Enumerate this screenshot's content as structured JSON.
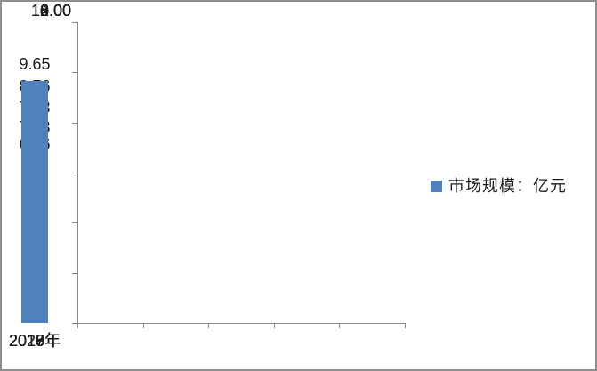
{
  "chart_data": {
    "type": "bar",
    "categories": [
      "2016年",
      "2017年",
      "2018年",
      "2019年",
      "2020年"
    ],
    "values": [
      6.46,
      7.13,
      7.93,
      8.76,
      9.65
    ],
    "data_labels": [
      "6.46",
      "7.13",
      "7.93",
      "8.76",
      "9.65"
    ],
    "y_ticks": [
      "0.00",
      "2.00",
      "4.00",
      "6.00",
      "8.00",
      "10.00",
      "12.00"
    ],
    "ylim": [
      0,
      12
    ],
    "title": "",
    "xlabel": "",
    "ylabel": "",
    "grid": false,
    "legend_position": "right",
    "legend": [
      {
        "label": "市场规模：亿元",
        "color": "#4f81bd"
      }
    ],
    "bar_color": "#4f81bd",
    "axis_color": "#898989",
    "text_color": "#1c1c1c",
    "frame_border_color": "#8e8e8e"
  }
}
